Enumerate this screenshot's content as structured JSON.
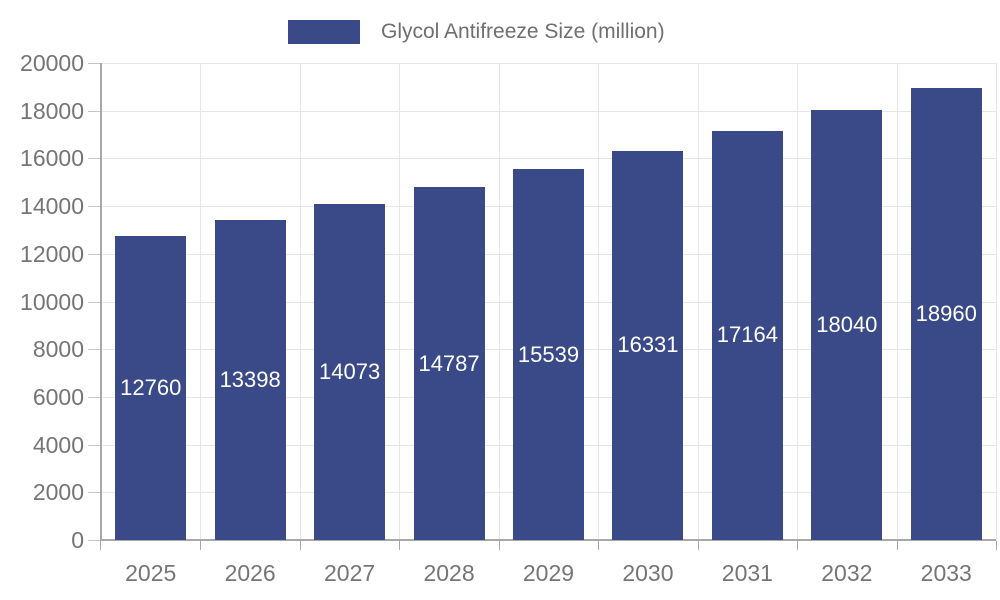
{
  "legend": {
    "label": "Glycol Antifreeze Size (million)"
  },
  "colors": {
    "bar": "#3A4A88",
    "axis_line": "#a8a8a8",
    "grid_line": "#e6e6ea",
    "tick_line": "#c6c6c6",
    "axis_text": "#757575",
    "legend_text": "#6f6f6f",
    "bar_label_text": "#ffffff",
    "background": "#ffffff"
  },
  "chart_data": {
    "type": "bar",
    "title": "Glycol Antifreeze Size (million)",
    "categories": [
      "2025",
      "2026",
      "2027",
      "2028",
      "2029",
      "2030",
      "2031",
      "2032",
      "2033"
    ],
    "series": [
      {
        "name": "Glycol Antifreeze Size (million)",
        "values": [
          12760,
          13398,
          14073,
          14787,
          15539,
          16331,
          17164,
          18040,
          18960
        ]
      }
    ],
    "xlabel": "",
    "ylabel": "",
    "ylim": [
      0,
      20000
    ],
    "ytick_step": 2000,
    "yticks": [
      0,
      2000,
      4000,
      6000,
      8000,
      10000,
      12000,
      14000,
      16000,
      18000,
      20000
    ],
    "grid": true,
    "legend_position": "top-center",
    "value_label_position": "inside-middle"
  }
}
